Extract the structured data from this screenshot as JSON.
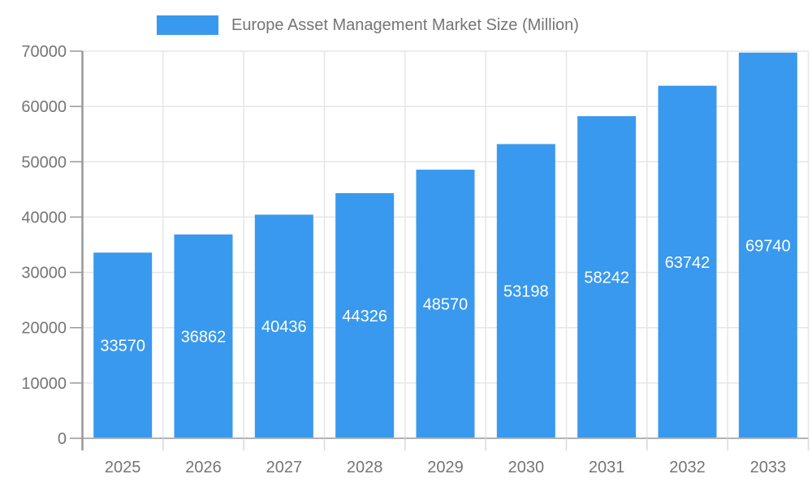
{
  "chart_data": {
    "type": "bar",
    "title": "Europe Asset Management Market Size (Million)",
    "categories": [
      "2025",
      "2026",
      "2027",
      "2028",
      "2029",
      "2030",
      "2031",
      "2032",
      "2033"
    ],
    "series": [
      {
        "name": "Europe Asset Management Market Size (Million)",
        "values": [
          33570,
          36862,
          40436,
          44326,
          48570,
          53198,
          58242,
          63742,
          69740
        ]
      }
    ],
    "value_labels": [
      33570,
      36862,
      40436,
      44326,
      48570,
      53198,
      58242,
      63742,
      69740
    ],
    "value_label_position": "inside-center",
    "xlabel": "",
    "ylabel": "",
    "ylim": [
      0,
      70000
    ],
    "ytick_step": 10000,
    "ytick_labels": [
      "0",
      "10000",
      "20000",
      "30000",
      "40000",
      "50000",
      "60000",
      "70000"
    ],
    "grid": true,
    "legend_position": "top",
    "colors": {
      "bar": "#3999ee",
      "value_label_text": "#ffffff",
      "axis_text": "#757575",
      "legend_text": "#757575",
      "grid_line": "#e6e6e6",
      "x_axis_line": "#b3b3b3",
      "y_axis_line": "#999999",
      "x_tick_line": "#d9d9d9",
      "background": "#ffffff"
    }
  }
}
